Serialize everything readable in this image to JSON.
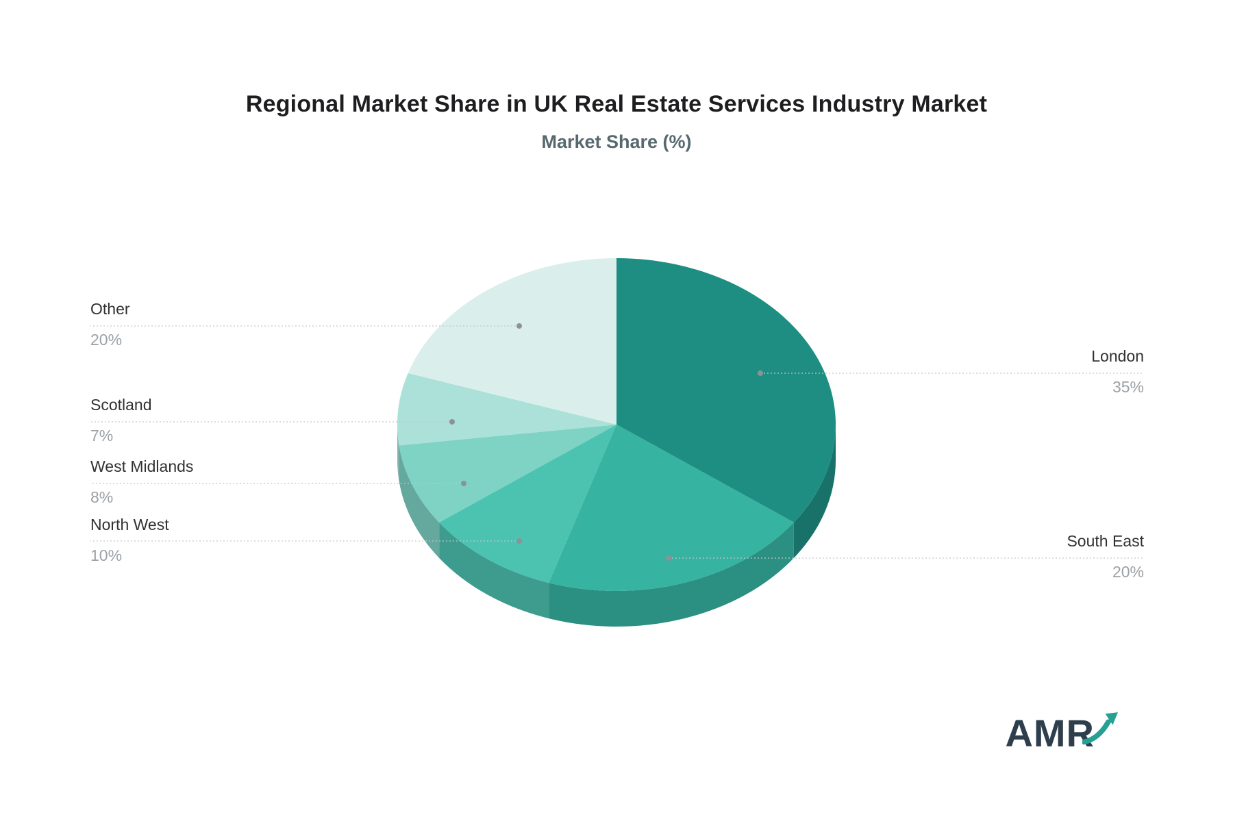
{
  "page": {
    "title": "Regional Market Share in UK Real Estate Services Industry Market",
    "subtitle": "Market Share (%)"
  },
  "logo": {
    "text": "AMR"
  },
  "chart_data": {
    "type": "pie",
    "title": "Regional Market Share in UK Real Estate Services Industry Market",
    "subtitle": "Market Share (%)",
    "unit": "%",
    "effect": "3d",
    "start_angle_deg": -90,
    "direction": "clockwise",
    "legend_position": "none",
    "categories": [
      "London",
      "South East",
      "North West",
      "West Midlands",
      "Scotland",
      "Other"
    ],
    "values": [
      35,
      20,
      10,
      8,
      7,
      20
    ],
    "slices": [
      {
        "label": "London",
        "value": 35,
        "display": "35%",
        "color": "#1e8e83"
      },
      {
        "label": "South East",
        "value": 20,
        "display": "20%",
        "color": "#36b3a1"
      },
      {
        "label": "North West",
        "value": 10,
        "display": "10%",
        "color": "#4cc3b1"
      },
      {
        "label": "West Midlands",
        "value": 8,
        "display": "8%",
        "color": "#7ed3c5"
      },
      {
        "label": "Scotland",
        "value": 7,
        "display": "7%",
        "color": "#abe1d8"
      },
      {
        "label": "Other",
        "value": 20,
        "display": "20%",
        "color": "#daefec"
      }
    ],
    "leader_line_color": "#c3c6c9",
    "leader_dot_color": "#8d9296"
  }
}
